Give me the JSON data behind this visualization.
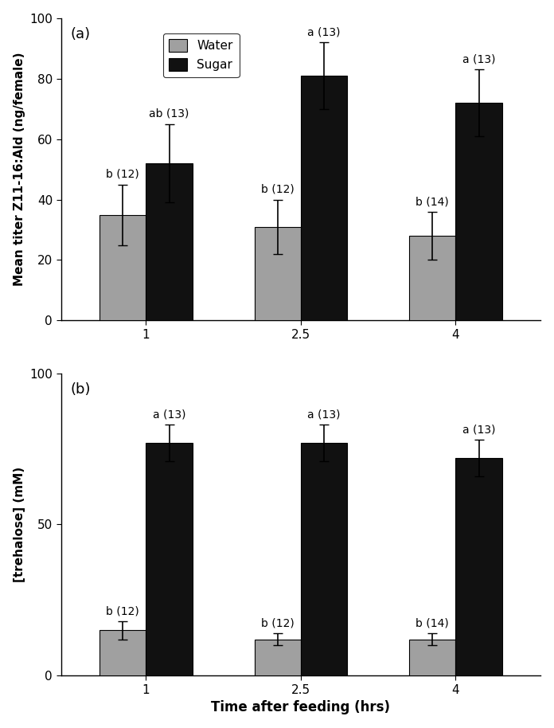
{
  "panel_a": {
    "ylabel": "Mean titer Z11-16:Ald (ng/female)",
    "ylim": [
      0,
      100
    ],
    "yticks": [
      0,
      20,
      40,
      60,
      80,
      100
    ],
    "water_means": [
      35,
      31,
      28
    ],
    "water_errors": [
      10,
      9,
      8
    ],
    "sugar_means": [
      52,
      81,
      72
    ],
    "sugar_errors": [
      13,
      11,
      11
    ],
    "water_labels": [
      "b (12)",
      "b (12)",
      "b (14)"
    ],
    "sugar_labels": [
      "ab (13)",
      "a (13)",
      "a (13)"
    ],
    "panel_label": "(a)"
  },
  "panel_b": {
    "ylabel": "[trehalose] (mM)",
    "xlabel": "Time after feeding (hrs)",
    "ylim": [
      0,
      100
    ],
    "yticks": [
      0,
      50,
      100
    ],
    "water_means": [
      15,
      12,
      12
    ],
    "water_errors": [
      3,
      2,
      2
    ],
    "sugar_means": [
      77,
      77,
      72
    ],
    "sugar_errors": [
      6,
      6,
      6
    ],
    "water_labels": [
      "b (12)",
      "b (12)",
      "b (14)"
    ],
    "sugar_labels": [
      "a (13)",
      "a (13)",
      "a (13)"
    ],
    "panel_label": "(b)"
  },
  "water_color": "#a0a0a0",
  "sugar_color": "#111111",
  "bar_width": 0.3,
  "legend_labels": [
    "Water",
    "Sugar"
  ],
  "group_centers": [
    1,
    2,
    3
  ],
  "xtick_labels": [
    "1",
    "2.5",
    "4"
  ],
  "xlim": [
    0.45,
    3.55
  ],
  "label_fontsize": 11,
  "tick_fontsize": 11,
  "annot_fontsize": 10
}
